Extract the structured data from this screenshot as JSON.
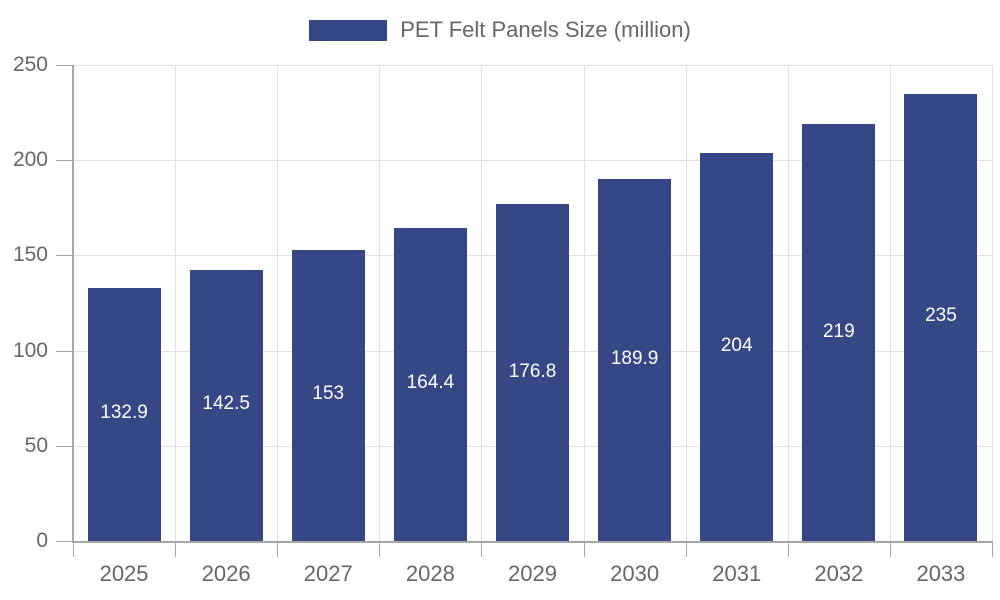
{
  "chart_data": {
    "type": "bar",
    "title": "PET Felt Panels Size (million)",
    "series_name": "PET Felt Panels Size (million)",
    "categories": [
      "2025",
      "2026",
      "2027",
      "2028",
      "2029",
      "2030",
      "2031",
      "2032",
      "2033"
    ],
    "values": [
      132.9,
      142.5,
      153,
      164.4,
      176.8,
      189.9,
      204,
      219,
      235
    ],
    "xlabel": "",
    "ylabel": "",
    "ylim": [
      0,
      250
    ],
    "yticks": [
      0,
      50,
      100,
      150,
      200,
      250
    ],
    "grid": true,
    "legend_position": "top",
    "bar_color": "#354885",
    "bar_label_color": "#FFFFFF",
    "axis_text_color": "#666666",
    "axis_line_color": "#A6A6A6",
    "grid_color": "#E2E2E2"
  }
}
